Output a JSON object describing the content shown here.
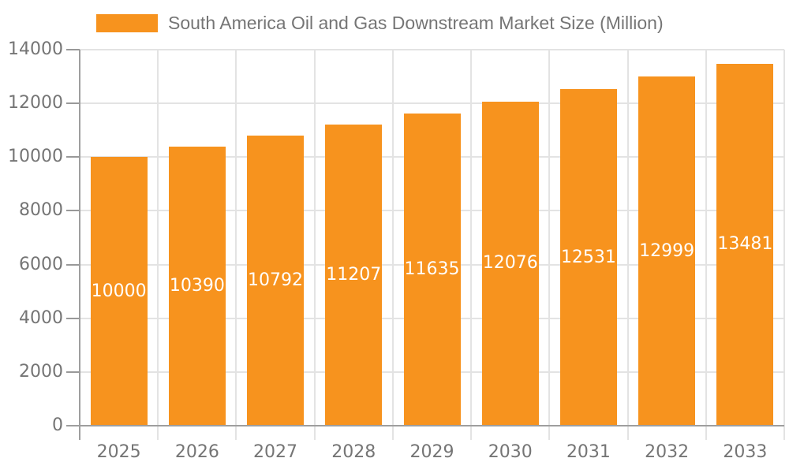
{
  "legend": {
    "label": "South America Oil and Gas Downstream Market Size (Million)"
  },
  "colors": {
    "bar": "#F7931E",
    "label_text": "#757575",
    "value_label_text": "#FFFFFF",
    "axis_line": "#9E9E9E",
    "tick_line": "#999999",
    "gridline": "#E3E3E3",
    "background": "#FFFFFF"
  },
  "chart_data": {
    "type": "bar",
    "title": "South America Oil and Gas Downstream Market Size (Million)",
    "categories": [
      "2025",
      "2026",
      "2027",
      "2028",
      "2029",
      "2030",
      "2031",
      "2032",
      "2033"
    ],
    "series": [
      {
        "name": "South America Oil and Gas Downstream Market Size (Million)",
        "values": [
          10000,
          10390,
          10792,
          11207,
          11635,
          12076,
          12531,
          12999,
          13481
        ]
      }
    ],
    "value_labels": [
      "10000",
      "10390",
      "10792",
      "11207",
      "11635",
      "12076",
      "12531",
      "12999",
      "13481"
    ],
    "xlabel": "",
    "ylabel": "",
    "ylim": [
      0,
      14000
    ],
    "ytick_interval": 2000,
    "yticks": [
      0,
      2000,
      4000,
      6000,
      8000,
      10000,
      12000,
      14000
    ],
    "grid": true,
    "legend_position": "top",
    "value_label_position": "inside-center"
  }
}
